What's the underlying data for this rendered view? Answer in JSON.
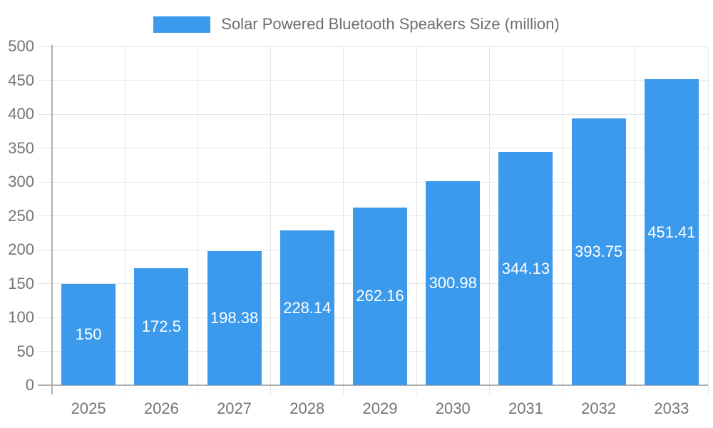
{
  "chart_data": {
    "type": "bar",
    "title": "Solar Powered Bluetooth Speakers Size (million)",
    "categories": [
      "2025",
      "2026",
      "2027",
      "2028",
      "2029",
      "2030",
      "2031",
      "2032",
      "2033"
    ],
    "values": [
      150,
      172.5,
      198.38,
      228.14,
      262.16,
      300.98,
      344.13,
      393.75,
      451.41
    ],
    "value_labels": [
      "150",
      "172.5",
      "198.38",
      "228.14",
      "262.16",
      "300.98",
      "344.13",
      "393.75",
      "451.41"
    ],
    "xlabel": "",
    "ylabel": "",
    "ylim": [
      0,
      500
    ],
    "yticks": [
      0,
      50,
      100,
      150,
      200,
      250,
      300,
      350,
      400,
      450,
      500
    ],
    "ytick_labels": [
      "0",
      "50",
      "100",
      "150",
      "200",
      "250",
      "300",
      "350",
      "400",
      "450",
      "500"
    ],
    "grid": true,
    "legend": {
      "position": "top-center",
      "entries": [
        "Solar Powered Bluetooth Speakers Size (million)"
      ]
    },
    "colors": {
      "bar": "#3b9aec",
      "grid": "#e6e6e6",
      "axis": "#b0b0b0",
      "axis_text": "#757575",
      "legend_text": "#6e6e6e",
      "value_text": "#ffffff"
    }
  }
}
